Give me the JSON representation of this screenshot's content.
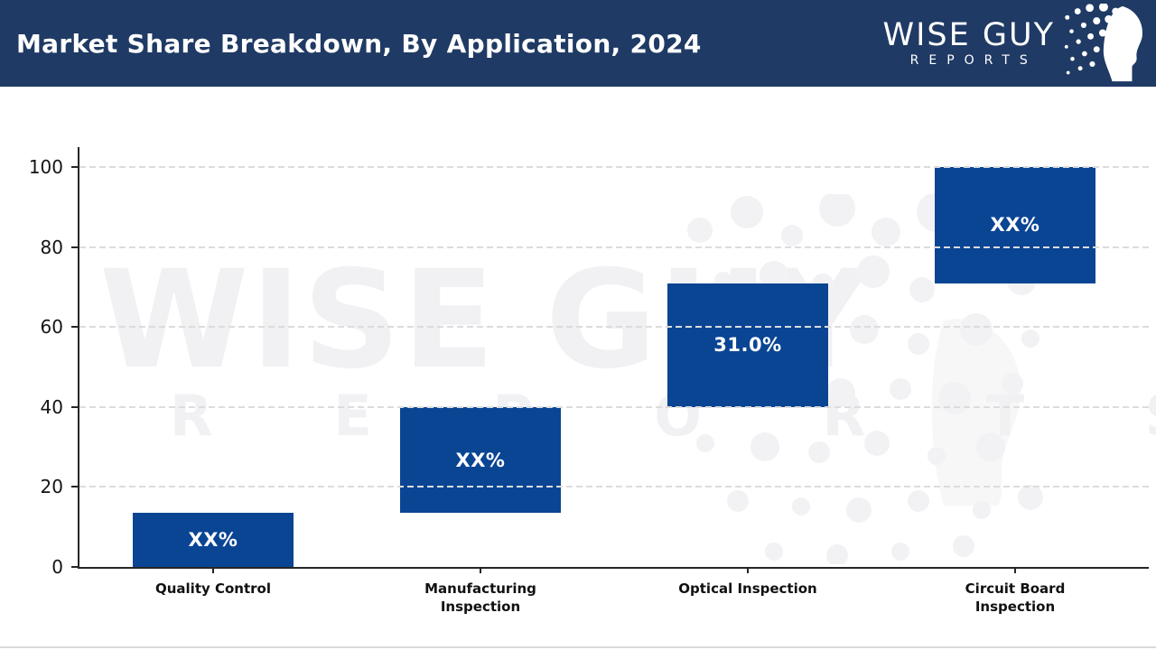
{
  "header": {
    "title": "Market Share Breakdown, By Application, 2024",
    "logo": {
      "line1": "WISE GUY",
      "line2": "REPORTS"
    }
  },
  "watermark": {
    "line1": "WISE GUY",
    "line2": "R E P O R T S"
  },
  "chart_data": {
    "type": "bar",
    "subtype": "waterfall",
    "title": "Market Share Breakdown, By Application, 2024",
    "categories": [
      "Quality Control",
      "Manufacturing\nInspection",
      "Optical Inspection",
      "Circuit Board\nInspection"
    ],
    "segments": [
      {
        "category": "Quality Control",
        "start": 0,
        "end": 13.5,
        "label": "XX%"
      },
      {
        "category": "Manufacturing Inspection",
        "start": 13.5,
        "end": 40,
        "label": "XX%"
      },
      {
        "category": "Optical Inspection",
        "start": 40,
        "end": 71,
        "label": "31.0%"
      },
      {
        "category": "Circuit Board Inspection",
        "start": 71,
        "end": 100,
        "label": "XX%"
      }
    ],
    "yticks": [
      0,
      20,
      40,
      60,
      80,
      100
    ],
    "ylim": [
      0,
      105
    ],
    "xlabel": "",
    "ylabel": "",
    "grid": "horizontal-dashed-over-bars",
    "legend": "none",
    "bar_color": "#0a4594",
    "bar_label_color": "#ffffff"
  },
  "colors": {
    "header_bg": "#1f3a64",
    "bar_color": "#0a4594",
    "axis_color": "#262626",
    "grid_color": "#dcdcdc",
    "watermark_color": "#f1f1f4",
    "footer_line": "#d9d9d9"
  }
}
